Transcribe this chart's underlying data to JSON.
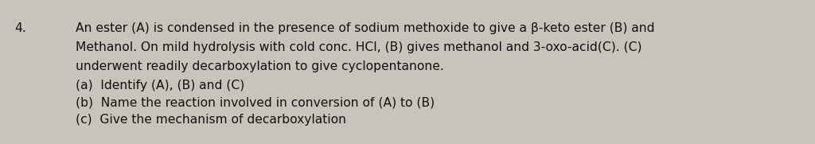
{
  "question_number": "4.",
  "line1": "An ester (A) is condensed in the presence of sodium methoxide to give a β-keto ester (B) and",
  "line2": "Methanol. On mild hydrolysis with cold conc. HCl, (B) gives methanol and 3-oxo-acid(C). (C)",
  "line3": "underwent readily decarboxylation to give cyclopentanone.",
  "line4a": "(a)  Identify (A), (B) and (C)",
  "line4b": "(b)  Name the reaction involved in conversion of (A) to (B)",
  "line4c": "(c)  Give the mechanism of decarboxylation",
  "bg_color": "#c8c4bc",
  "text_color": "#111111",
  "font_size": 11.2
}
